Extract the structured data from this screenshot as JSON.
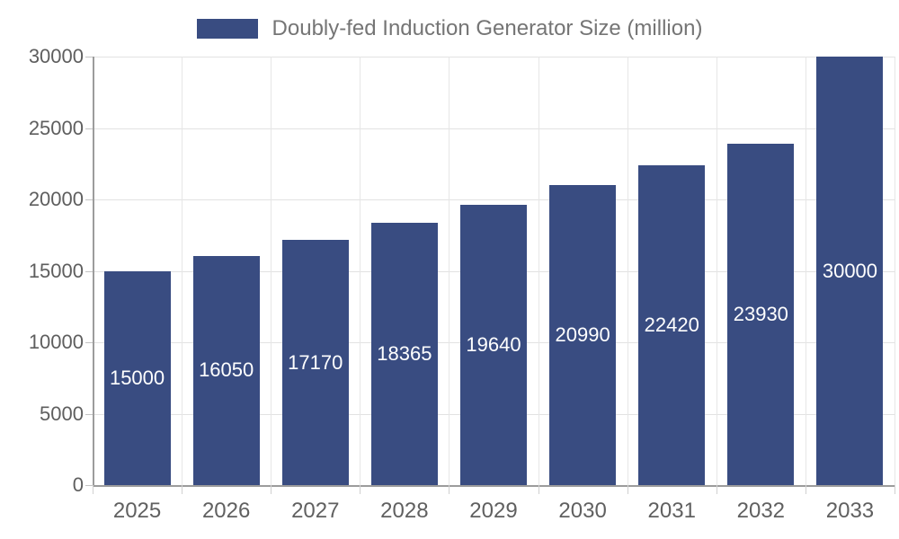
{
  "legend": {
    "label": "Doubly-fed Induction Generator Size (million)"
  },
  "colors": {
    "bar": "#394C81",
    "legend_text": "#757575",
    "tick_label": "#5e5e5e",
    "axis_line": "#9c9c9c",
    "gridline": "#e2e2e2",
    "bar_value_label": "#ffffff"
  },
  "chart_data": {
    "type": "bar",
    "title": "Doubly-fed Induction Generator Size (million)",
    "categories": [
      "2025",
      "2026",
      "2027",
      "2028",
      "2029",
      "2030",
      "2031",
      "2032",
      "2033"
    ],
    "values": [
      15000,
      16050,
      17170,
      18365,
      19640,
      20990,
      22420,
      23930,
      30000
    ],
    "value_labels": [
      "15000",
      "16050",
      "17170",
      "18365",
      "19640",
      "20990",
      "22420",
      "23930",
      "30000"
    ],
    "xlabel": "",
    "ylabel": "",
    "ylim": [
      0,
      30000
    ],
    "yticks": [
      0,
      5000,
      10000,
      15000,
      20000,
      25000,
      30000
    ],
    "grid": true,
    "legend_position": "top-center",
    "bar_color": "#394C81",
    "value_label_position": "inside-center"
  }
}
